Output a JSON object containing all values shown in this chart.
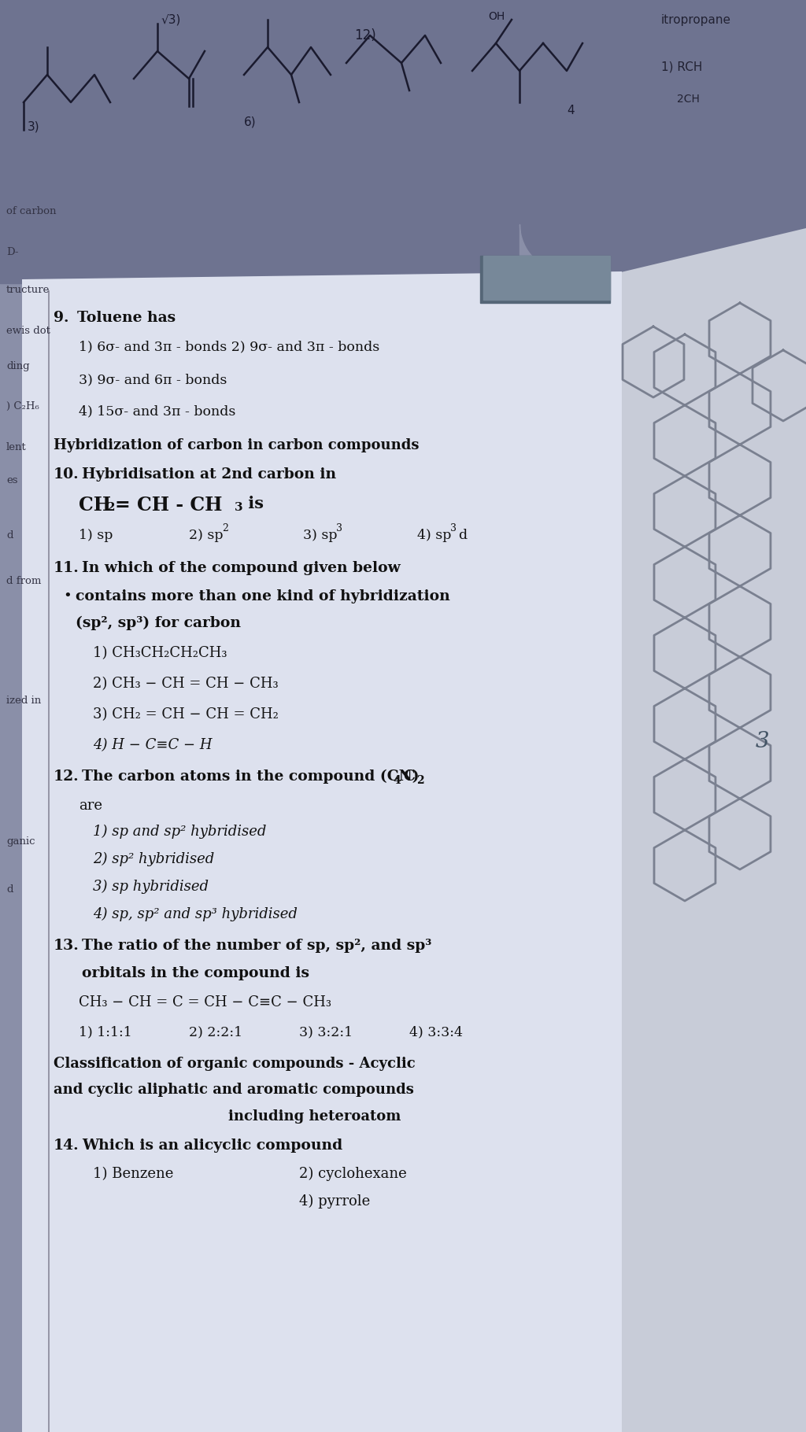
{
  "bg_top_color": "#7a7e99",
  "bg_bottom_color": "#b8bccc",
  "paper_color": "#dde0ec",
  "text_white_color": "#e8eaf5",
  "line_color": "#333344",
  "left_margin_words": [
    [
      8,
      1130,
      "d"
    ],
    [
      8,
      1070,
      "ganic"
    ],
    [
      8,
      990,
      ""
    ],
    [
      8,
      890,
      "ized in"
    ],
    [
      8,
      810,
      ""
    ],
    [
      8,
      738,
      "d from"
    ],
    [
      8,
      680,
      "d"
    ],
    [
      8,
      610,
      "es"
    ],
    [
      8,
      568,
      "lent"
    ],
    [
      8,
      516,
      ") C₂H₆"
    ],
    [
      8,
      466,
      "ding"
    ],
    [
      8,
      420,
      "ewis dot"
    ],
    [
      8,
      368,
      "tructure"
    ],
    [
      8,
      320,
      "D-"
    ],
    [
      8,
      268,
      "of carbon"
    ]
  ],
  "q9_num": "9.",
  "q9_text": "Toluene has",
  "q9_opt12": "1) 6σ- and 3π - bonds 2) 9σ- and 3π - bonds",
  "q9_opt3": "3) 9σ- and 6π - bonds",
  "q9_opt4": "4) 15σ- and 3π - bonds",
  "sec1_title": "Hybridization of carbon in carbon compounds",
  "q10_num": "10.",
  "q10_text": "Hybridisation at 2nd carbon in",
  "q10_formula_parts": [
    "CH",
    "2",
    " = CH - CH",
    "3",
    " is"
  ],
  "q10_opt1": "1) sp",
  "q10_opt2": "2) sp",
  "q10_opt2_sup": "2",
  "q10_opt3": "3) sp",
  "q10_opt3_sup": "3",
  "q10_opt4": "4) sp",
  "q10_opt4_sup": "3",
  "q10_opt4_end": "d",
  "q11_num": "11.",
  "q11_text": "In which of the compound given below",
  "q11_cont": "contains more than one kind of hybridization",
  "q11_cont2": "(sp², sp³) for carbon",
  "q11_opt1": "1) CH₃CH₂CH₂CH₃",
  "q11_opt2": "2) CH₃ − CH = CH − CH₃",
  "q11_opt3": "3) CH₂ = CH − CH = CH₂",
  "q11_opt4": "4) H − C≡C − H",
  "q12_num": "12.",
  "q12_text": "The carbon atoms in the compound (CN)",
  "q12_text_sub": "4",
  "q12_text_end": "C",
  "q12_text_sub2": "2",
  "q12_sub": "are",
  "q12_opt1": "1) sp and sp² hybridised",
  "q12_opt2": "2) sp² hybridised",
  "q12_opt3": "3) sp hybridised",
  "q12_opt4": "4) sp, sp² and sp³ hybridised",
  "q13_num": "13.",
  "q13_text": "The ratio of the number of sp, sp², and sp³",
  "q13_sub": "orbitals in the compound is",
  "q13_formula": "CH₃ − CH = C = CH − C≡C − CH₃",
  "q13_opt1": "1) 1:1:1",
  "q13_opt2": "2) 2:2:1",
  "q13_opt3": "3) 3:2:1",
  "q13_opt4": "4) 3:3:4",
  "sec2_line1": "Classification of organic compounds - Acyclic",
  "sec2_line2": "and cyclic aliphatic and aromatic compounds",
  "sec2_line3": "including heteroatom",
  "q14_num": "14.",
  "q14_text": "Which is an alicyclic compound",
  "q14_opt1": "1) Benzene",
  "q14_opt2": "2) cyclohexane",
  "q14_opt4": "4) pyrrole",
  "right_page_text_top": "itropropane",
  "right_page_text2": "1) RCH",
  "right_page_text3": "2CH"
}
